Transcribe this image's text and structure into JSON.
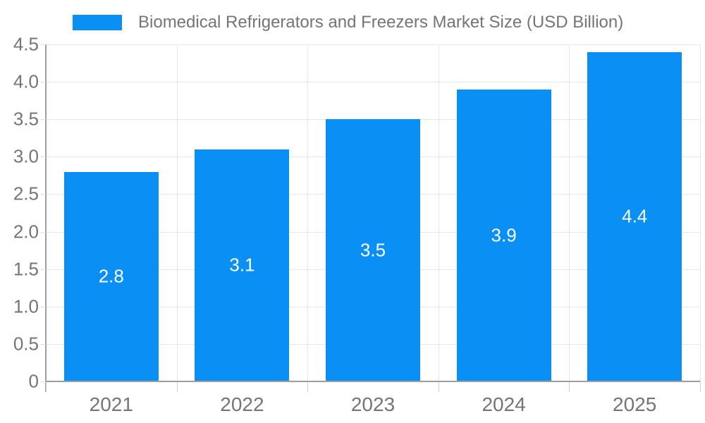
{
  "legend": {
    "series_label": "Biomedical Refrigerators and Freezers Market Size (USD Billion)"
  },
  "chart_data": {
    "type": "bar",
    "title": "Biomedical Refrigerators and Freezers Market Size (USD Billion)",
    "categories": [
      "2021",
      "2022",
      "2023",
      "2024",
      "2025"
    ],
    "values": [
      2.8,
      3.1,
      3.5,
      3.9,
      4.4
    ],
    "bar_labels": [
      "2.8",
      "3.1",
      "3.5",
      "3.9",
      "4.4"
    ],
    "xlabel": "",
    "ylabel": "",
    "ylim": [
      0,
      4.5
    ],
    "ytick_step": 0.5,
    "ytick_labels": [
      "0",
      "0.5",
      "1.0",
      "1.5",
      "2.0",
      "2.5",
      "3.0",
      "3.5",
      "4.0",
      "4.5"
    ],
    "grid": true,
    "legend_position": "top",
    "colors": {
      "bar": "#0a8ff5",
      "grid": "#e6e6e6",
      "axis": "#9e9e9e",
      "tick_label": "#757575",
      "bar_label": "#ffffff",
      "background": "#ffffff"
    }
  }
}
